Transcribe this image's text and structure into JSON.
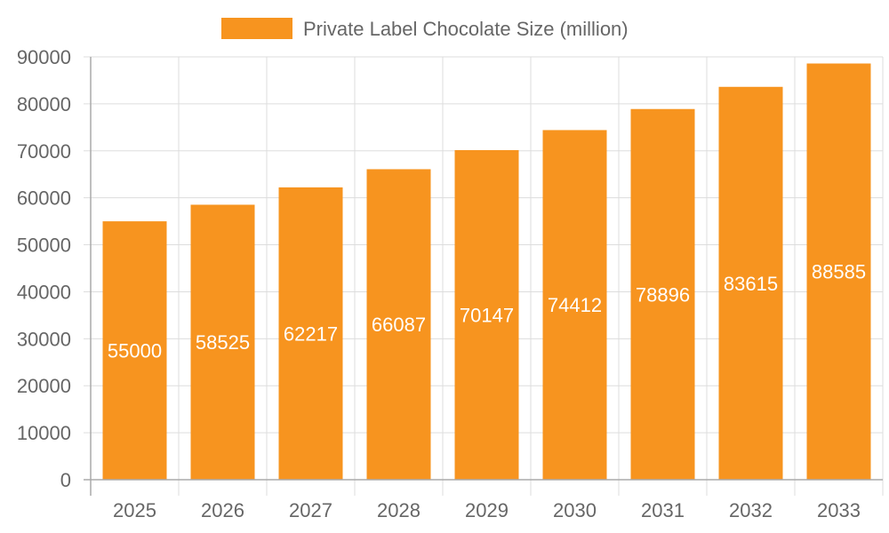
{
  "chart_data": {
    "type": "bar",
    "title": "",
    "xlabel": "",
    "ylabel": "",
    "categories": [
      "2025",
      "2026",
      "2027",
      "2028",
      "2029",
      "2030",
      "2031",
      "2032",
      "2033"
    ],
    "series": [
      {
        "name": "Private Label Chocolate Size (million)",
        "values": [
          55000,
          58525,
          62217,
          66087,
          70147,
          74412,
          78896,
          83615,
          88585
        ],
        "color": "#F7941F"
      }
    ],
    "ylim": [
      0,
      90000
    ],
    "yticks": [
      0,
      10000,
      20000,
      30000,
      40000,
      50000,
      60000,
      70000,
      80000,
      90000
    ],
    "grid": true,
    "legend": "top",
    "data_labels": true
  }
}
